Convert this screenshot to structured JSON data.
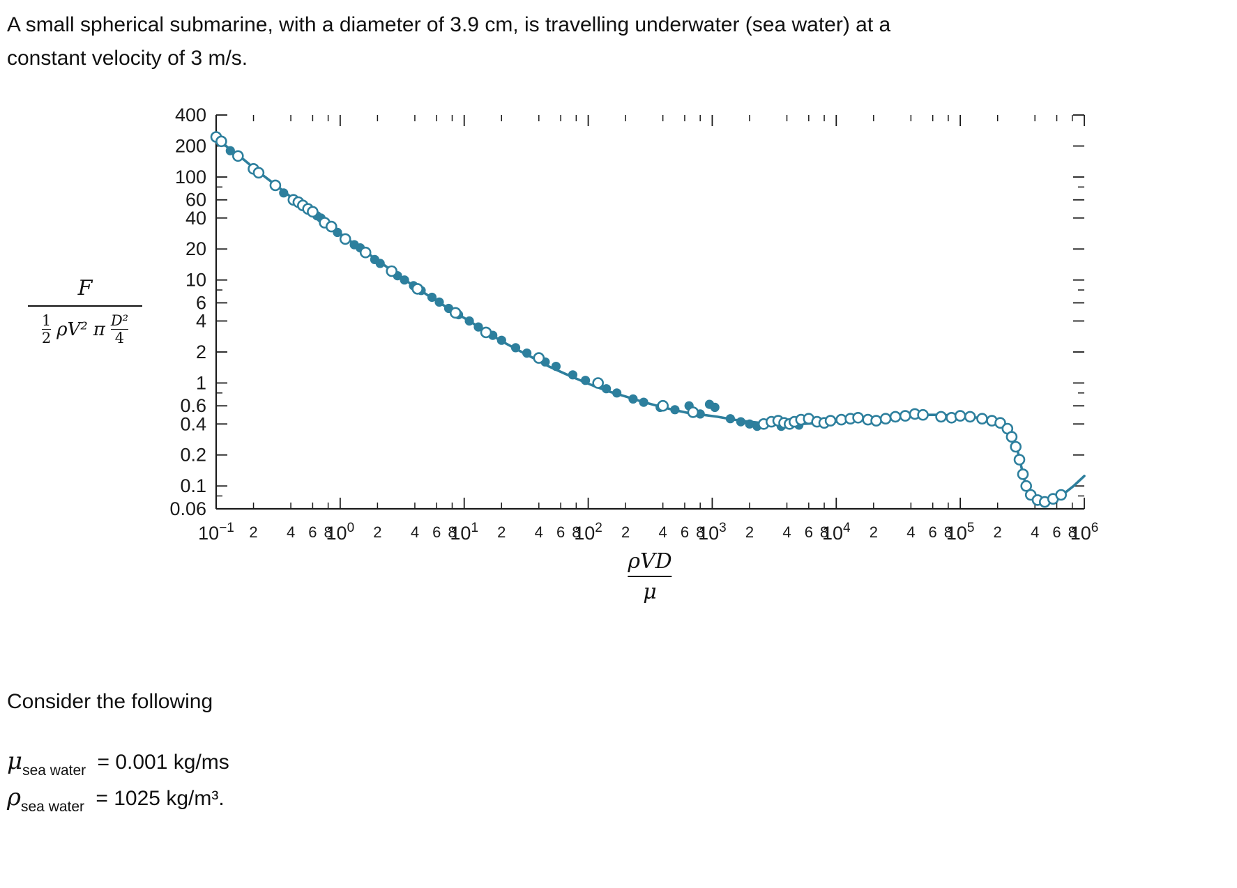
{
  "problem": {
    "line1": "A small spherical submarine, with a diameter of 3.9 cm, is travelling underwater (sea water) at a",
    "line2": "constant velocity of 3 m/s."
  },
  "consider": {
    "heading": "Consider the following",
    "mu": {
      "symbol": "μ",
      "subscript": "sea water",
      "value": "= 0.001 kg/ms"
    },
    "rho": {
      "symbol": "ρ",
      "subscript": "sea water",
      "value": "= 1025 kg/m³."
    }
  },
  "chart_data": {
    "type": "scatter",
    "title": "",
    "xlabel": {
      "numerator": "ρVD",
      "denominator": "μ"
    },
    "ylabel": {
      "numerator": "F",
      "den_frac1_num": "1",
      "den_frac1_den": "2",
      "den_term1": "ρV²",
      "den_term2": "π",
      "den_frac2_num": "D²",
      "den_frac2_den": "4"
    },
    "x_axis": {
      "scale": "log",
      "min": 0.1,
      "max": 1000000,
      "decade_exponents": [
        "−1",
        "0",
        "1",
        "2",
        "3",
        "4",
        "5",
        "6"
      ],
      "minor_tick_labels": [
        "2",
        "4",
        "6",
        "8"
      ]
    },
    "y_axis": {
      "scale": "log",
      "min": 0.06,
      "max": 400,
      "tick_labels": [
        "400",
        "200",
        "100",
        "60",
        "40",
        "20",
        "10",
        "6",
        "4",
        "2",
        "1",
        "0.6",
        "0.4",
        "0.2",
        "0.1",
        "0.06"
      ]
    },
    "colors": {
      "curve": "#2d7f9d",
      "marker_fill": "#2d7f9d",
      "marker_open_fill": "#ffffff",
      "axis": "#1a1a1a"
    },
    "series": [
      {
        "name": "drag-curve",
        "type": "line",
        "points": [
          [
            0.1,
            240
          ],
          [
            0.13,
            185
          ],
          [
            0.17,
            145
          ],
          [
            0.22,
            112
          ],
          [
            0.3,
            84
          ],
          [
            0.4,
            64
          ],
          [
            0.55,
            48
          ],
          [
            0.7,
            38.5
          ],
          [
            0.9,
            31
          ],
          [
            1.2,
            24
          ],
          [
            1.6,
            18.8
          ],
          [
            2.1,
            14.9
          ],
          [
            2.8,
            11.6
          ],
          [
            3.7,
            9.2
          ],
          [
            5,
            7.2
          ],
          [
            6.5,
            5.9
          ],
          [
            8.5,
            4.8
          ],
          [
            11,
            4.0
          ],
          [
            15,
            3.15
          ],
          [
            20,
            2.55
          ],
          [
            27,
            2.1
          ],
          [
            36,
            1.75
          ],
          [
            48,
            1.45
          ],
          [
            65,
            1.23
          ],
          [
            85,
            1.07
          ],
          [
            110,
            0.94
          ],
          [
            150,
            0.82
          ],
          [
            200,
            0.74
          ],
          [
            270,
            0.66
          ],
          [
            360,
            0.6
          ],
          [
            480,
            0.55
          ],
          [
            650,
            0.51
          ],
          [
            850,
            0.49
          ],
          [
            1100,
            0.47
          ],
          [
            1500,
            0.44
          ],
          [
            2000,
            0.42
          ],
          [
            2700,
            0.405
          ],
          [
            3600,
            0.4
          ],
          [
            5000,
            0.4
          ],
          [
            6500,
            0.405
          ],
          [
            8500,
            0.415
          ],
          [
            11000,
            0.425
          ],
          [
            15000,
            0.44
          ],
          [
            20000,
            0.45
          ],
          [
            27000,
            0.465
          ],
          [
            36000,
            0.48
          ],
          [
            48000,
            0.49
          ],
          [
            65000,
            0.49
          ],
          [
            85000,
            0.485
          ],
          [
            110000,
            0.475
          ],
          [
            150000,
            0.455
          ],
          [
            190000,
            0.42
          ],
          [
            230000,
            0.37
          ],
          [
            260000,
            0.31
          ],
          [
            285000,
            0.24
          ],
          [
            305000,
            0.17
          ],
          [
            325000,
            0.12
          ],
          [
            350000,
            0.09
          ],
          [
            390000,
            0.075
          ],
          [
            450000,
            0.069
          ],
          [
            520000,
            0.07
          ],
          [
            600000,
            0.076
          ],
          [
            700000,
            0.086
          ],
          [
            820000,
            0.1
          ],
          [
            1000000,
            0.125
          ]
        ]
      },
      {
        "name": "open-markers",
        "type": "scatter",
        "marker": "open-circle",
        "points": [
          [
            0.1,
            245
          ],
          [
            0.11,
            222
          ],
          [
            0.15,
            160
          ],
          [
            0.2,
            120
          ],
          [
            0.22,
            110
          ],
          [
            0.3,
            83
          ],
          [
            0.42,
            60
          ],
          [
            0.46,
            57
          ],
          [
            0.5,
            53
          ],
          [
            0.55,
            49
          ],
          [
            0.6,
            46
          ],
          [
            0.75,
            36
          ],
          [
            0.85,
            33
          ],
          [
            1.1,
            25
          ],
          [
            1.6,
            18.5
          ],
          [
            2.6,
            12.2
          ],
          [
            4.2,
            8.2
          ],
          [
            8.5,
            4.8
          ],
          [
            15,
            3.1
          ],
          [
            40,
            1.75
          ],
          [
            120,
            1.0
          ],
          [
            400,
            0.6
          ],
          [
            700,
            0.52
          ],
          [
            2600,
            0.4
          ],
          [
            3000,
            0.42
          ],
          [
            3400,
            0.43
          ],
          [
            3800,
            0.41
          ],
          [
            4200,
            0.4
          ],
          [
            4600,
            0.42
          ],
          [
            5200,
            0.44
          ],
          [
            6000,
            0.45
          ],
          [
            7000,
            0.42
          ],
          [
            8000,
            0.41
          ],
          [
            9000,
            0.43
          ],
          [
            11000,
            0.44
          ],
          [
            13000,
            0.45
          ],
          [
            15000,
            0.46
          ],
          [
            18000,
            0.44
          ],
          [
            21000,
            0.43
          ],
          [
            25000,
            0.45
          ],
          [
            30000,
            0.47
          ],
          [
            36000,
            0.48
          ],
          [
            43000,
            0.5
          ],
          [
            50000,
            0.49
          ],
          [
            70000,
            0.47
          ],
          [
            85000,
            0.46
          ],
          [
            100000,
            0.48
          ],
          [
            120000,
            0.47
          ],
          [
            150000,
            0.45
          ],
          [
            180000,
            0.43
          ],
          [
            210000,
            0.41
          ],
          [
            240000,
            0.36
          ],
          [
            260000,
            0.3
          ],
          [
            280000,
            0.24
          ],
          [
            300000,
            0.18
          ],
          [
            320000,
            0.13
          ],
          [
            340000,
            0.1
          ],
          [
            370000,
            0.082
          ],
          [
            420000,
            0.073
          ],
          [
            480000,
            0.07
          ],
          [
            560000,
            0.075
          ],
          [
            650000,
            0.082
          ]
        ]
      },
      {
        "name": "filled-markers",
        "type": "scatter",
        "marker": "filled-circle",
        "points": [
          [
            0.13,
            180
          ],
          [
            0.35,
            70
          ],
          [
            0.65,
            42
          ],
          [
            0.7,
            40
          ],
          [
            0.95,
            29
          ],
          [
            1.3,
            22
          ],
          [
            1.45,
            20.5
          ],
          [
            1.9,
            15.8
          ],
          [
            2.1,
            14.5
          ],
          [
            2.9,
            11
          ],
          [
            3.3,
            10
          ],
          [
            3.9,
            8.8
          ],
          [
            4.5,
            7.9
          ],
          [
            5.5,
            6.8
          ],
          [
            6.3,
            6.1
          ],
          [
            7.5,
            5.3
          ],
          [
            9,
            4.6
          ],
          [
            11,
            4
          ],
          [
            13,
            3.5
          ],
          [
            17,
            2.9
          ],
          [
            20,
            2.6
          ],
          [
            26,
            2.2
          ],
          [
            32,
            1.95
          ],
          [
            45,
            1.6
          ],
          [
            55,
            1.45
          ],
          [
            75,
            1.2
          ],
          [
            95,
            1.06
          ],
          [
            140,
            0.88
          ],
          [
            170,
            0.8
          ],
          [
            230,
            0.7
          ],
          [
            280,
            0.65
          ],
          [
            380,
            0.58
          ],
          [
            500,
            0.55
          ],
          [
            650,
            0.6
          ],
          [
            800,
            0.5
          ],
          [
            950,
            0.62
          ],
          [
            1050,
            0.58
          ],
          [
            1400,
            0.45
          ],
          [
            1700,
            0.42
          ],
          [
            2000,
            0.4
          ],
          [
            2300,
            0.38
          ],
          [
            3600,
            0.38
          ],
          [
            5000,
            0.39
          ]
        ]
      }
    ]
  }
}
